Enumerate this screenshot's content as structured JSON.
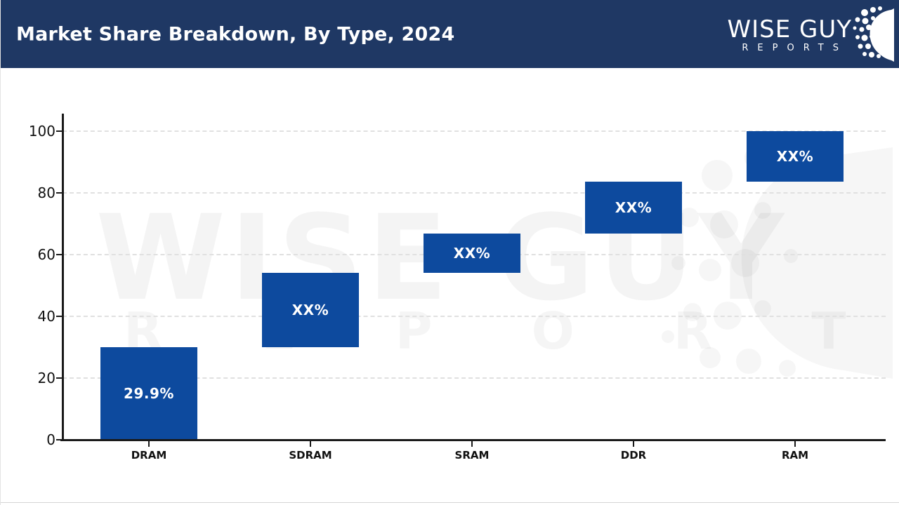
{
  "header": {
    "title": "Market Share Breakdown, By Type, 2024",
    "logo_line1": "WISE GUY",
    "logo_line2": "REPORTS",
    "bg_color": "#1f3864"
  },
  "watermark": {
    "line1": "WISE GUY",
    "line2": "R E P O R T S"
  },
  "chart_data": {
    "type": "bar",
    "subtype": "waterfall-floating-bars",
    "title": "Market Share Breakdown, By Type, 2024",
    "categories": [
      "DRAM",
      "SDRAM",
      "SRAM",
      "DDR",
      "RAM"
    ],
    "segments": [
      {
        "category": "DRAM",
        "start": 0,
        "end": 29.9,
        "label": "29.9%"
      },
      {
        "category": "SDRAM",
        "start": 29.9,
        "end": 54.1,
        "label": "XX%"
      },
      {
        "category": "SRAM",
        "start": 54.1,
        "end": 66.9,
        "label": "XX%"
      },
      {
        "category": "DDR",
        "start": 66.9,
        "end": 83.7,
        "label": "XX%"
      },
      {
        "category": "RAM",
        "start": 83.7,
        "end": 100,
        "label": "XX%"
      }
    ],
    "xlabel": "",
    "ylabel": "",
    "yticks": [
      0,
      20,
      40,
      60,
      80,
      100
    ],
    "ylim": [
      0,
      106
    ],
    "grid": "horizontal-dashed",
    "legend": "none",
    "bar_color": "#0d4a9e",
    "bar_label_color": "#ffffff",
    "axis_color": "#1a1a1a"
  }
}
